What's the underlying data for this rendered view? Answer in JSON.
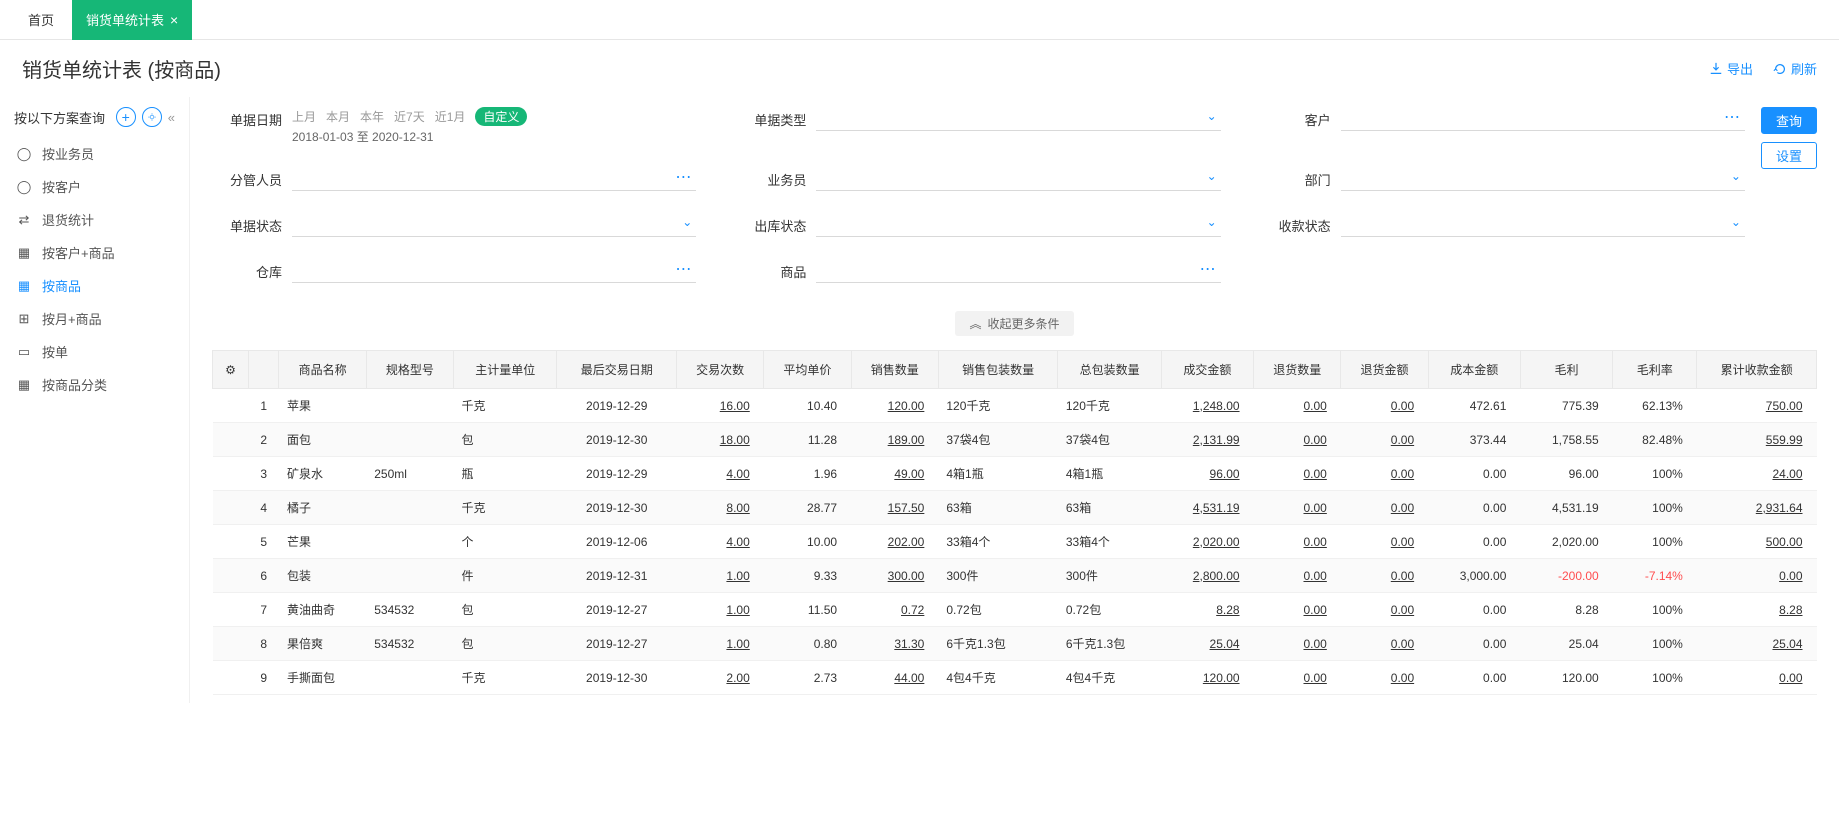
{
  "tabs": {
    "home": "首页",
    "active": "销货单统计表"
  },
  "page": {
    "title": "销货单统计表 (按商品)",
    "export": "导出",
    "refresh": "刷新"
  },
  "sidebar": {
    "title": "按以下方案查询",
    "items": [
      {
        "label": "按业务员"
      },
      {
        "label": "按客户"
      },
      {
        "label": "退货统计"
      },
      {
        "label": "按客户+商品"
      },
      {
        "label": "按商品"
      },
      {
        "label": "按月+商品"
      },
      {
        "label": "按单"
      },
      {
        "label": "按商品分类"
      }
    ],
    "active_index": 4
  },
  "filters": {
    "date_label": "单据日期",
    "date_links": [
      "上月",
      "本月",
      "本年",
      "近7天",
      "近1月"
    ],
    "date_custom": "自定义",
    "date_range": "2018-01-03 至 2020-12-31",
    "bill_type": "单据类型",
    "customer": "客户",
    "manager": "分管人员",
    "salesman": "业务员",
    "department": "部门",
    "bill_status": "单据状态",
    "out_status": "出库状态",
    "pay_status": "收款状态",
    "warehouse": "仓库",
    "product": "商品",
    "query": "查询",
    "settings": "设置",
    "collapse": "收起更多条件"
  },
  "table": {
    "columns": [
      "商品名称",
      "规格型号",
      "主计量单位",
      "最后交易日期",
      "交易次数",
      "平均单价",
      "销售数量",
      "销售包装数量",
      "总包装数量",
      "成交金额",
      "退货数量",
      "退货金额",
      "成本金额",
      "毛利",
      "毛利率",
      "累计收款金额"
    ],
    "rows": [
      {
        "n": "1",
        "name": "苹果",
        "spec": "",
        "unit": "千克",
        "date": "2019-12-29",
        "times": "16.00",
        "avg": "10.40",
        "qty": "120.00",
        "pack": "120千克",
        "total": "120千克",
        "amt": "1,248.00",
        "rq": "0.00",
        "ra": "0.00",
        "cost": "472.61",
        "gp": "775.39",
        "gpr": "62.13%",
        "recv": "750.00"
      },
      {
        "n": "2",
        "name": "面包",
        "spec": "",
        "unit": "包",
        "date": "2019-12-30",
        "times": "18.00",
        "avg": "11.28",
        "qty": "189.00",
        "pack": "37袋4包",
        "total": "37袋4包",
        "amt": "2,131.99",
        "rq": "0.00",
        "ra": "0.00",
        "cost": "373.44",
        "gp": "1,758.55",
        "gpr": "82.48%",
        "recv": "559.99"
      },
      {
        "n": "3",
        "name": "矿泉水",
        "spec": "250ml",
        "unit": "瓶",
        "date": "2019-12-29",
        "times": "4.00",
        "avg": "1.96",
        "qty": "49.00",
        "pack": "4箱1瓶",
        "total": "4箱1瓶",
        "amt": "96.00",
        "rq": "0.00",
        "ra": "0.00",
        "cost": "0.00",
        "gp": "96.00",
        "gpr": "100%",
        "recv": "24.00"
      },
      {
        "n": "4",
        "name": "橘子",
        "spec": "",
        "unit": "千克",
        "date": "2019-12-30",
        "times": "8.00",
        "avg": "28.77",
        "qty": "157.50",
        "pack": "63箱",
        "total": "63箱",
        "amt": "4,531.19",
        "rq": "0.00",
        "ra": "0.00",
        "cost": "0.00",
        "gp": "4,531.19",
        "gpr": "100%",
        "recv": "2,931.64"
      },
      {
        "n": "5",
        "name": "芒果",
        "spec": "",
        "unit": "个",
        "date": "2019-12-06",
        "times": "4.00",
        "avg": "10.00",
        "qty": "202.00",
        "pack": "33箱4个",
        "total": "33箱4个",
        "amt": "2,020.00",
        "rq": "0.00",
        "ra": "0.00",
        "cost": "0.00",
        "gp": "2,020.00",
        "gpr": "100%",
        "recv": "500.00"
      },
      {
        "n": "6",
        "name": "包装",
        "spec": "",
        "unit": "件",
        "date": "2019-12-31",
        "times": "1.00",
        "avg": "9.33",
        "qty": "300.00",
        "pack": "300件",
        "total": "300件",
        "amt": "2,800.00",
        "rq": "0.00",
        "ra": "0.00",
        "cost": "3,000.00",
        "gp": "-200.00",
        "gpr": "-7.14%",
        "recv": "0.00",
        "neg": true
      },
      {
        "n": "7",
        "name": "黄油曲奇",
        "spec": "534532",
        "unit": "包",
        "date": "2019-12-27",
        "times": "1.00",
        "avg": "11.50",
        "qty": "0.72",
        "pack": "0.72包",
        "total": "0.72包",
        "amt": "8.28",
        "rq": "0.00",
        "ra": "0.00",
        "cost": "0.00",
        "gp": "8.28",
        "gpr": "100%",
        "recv": "8.28"
      },
      {
        "n": "8",
        "name": "果倍爽",
        "spec": "534532",
        "unit": "包",
        "date": "2019-12-27",
        "times": "1.00",
        "avg": "0.80",
        "qty": "31.30",
        "pack": "6千克1.3包",
        "total": "6千克1.3包",
        "amt": "25.04",
        "rq": "0.00",
        "ra": "0.00",
        "cost": "0.00",
        "gp": "25.04",
        "gpr": "100%",
        "recv": "25.04"
      },
      {
        "n": "9",
        "name": "手撕面包",
        "spec": "",
        "unit": "千克",
        "date": "2019-12-30",
        "times": "2.00",
        "avg": "2.73",
        "qty": "44.00",
        "pack": "4包4千克",
        "total": "4包4千克",
        "amt": "120.00",
        "rq": "0.00",
        "ra": "0.00",
        "cost": "0.00",
        "gp": "120.00",
        "gpr": "100%",
        "recv": "0.00"
      }
    ]
  },
  "colors": {
    "primary": "#1890ff",
    "green": "#16b777",
    "neg": "#ff4d4f"
  }
}
